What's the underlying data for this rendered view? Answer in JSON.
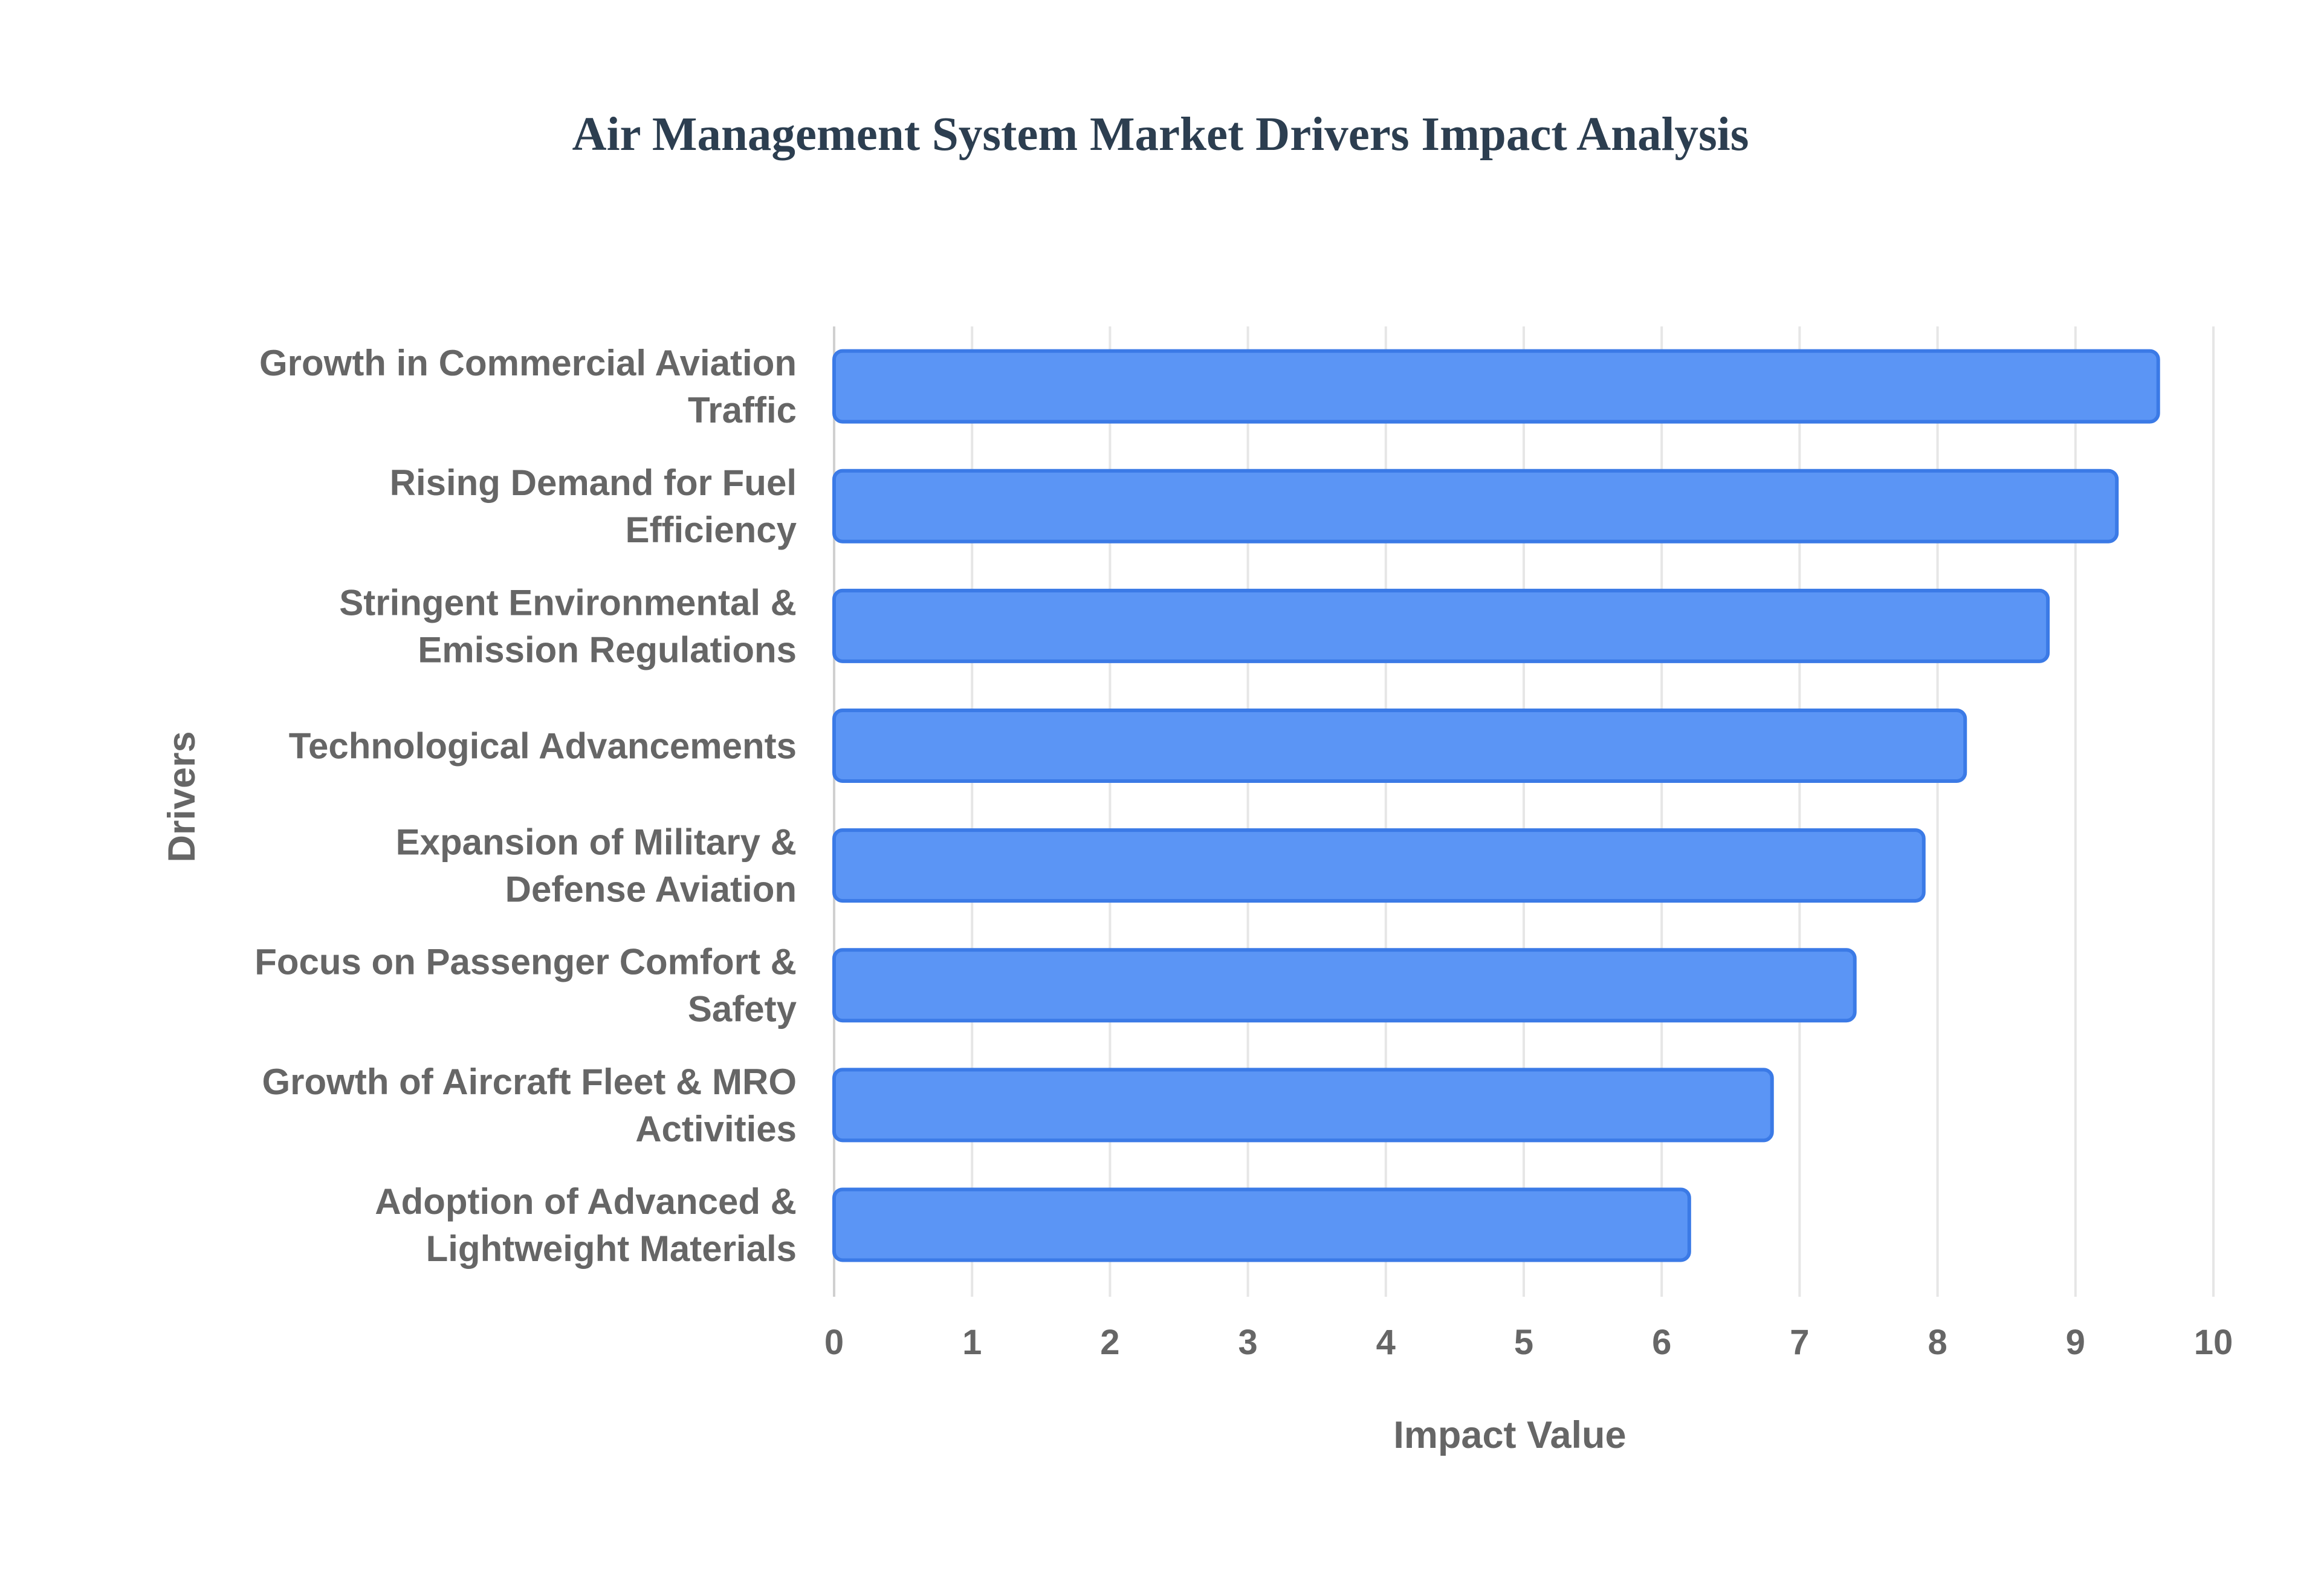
{
  "chart_data": {
    "type": "bar",
    "orientation": "horizontal",
    "title": "Air Management System Market Drivers Impact Analysis",
    "xlabel": "Impact Value",
    "ylabel": "Drivers",
    "xlim": [
      0,
      10
    ],
    "x_ticks": [
      "0",
      "1",
      "2",
      "3",
      "4",
      "5",
      "6",
      "7",
      "8",
      "9",
      "10"
    ],
    "grid": true,
    "categories": [
      [
        "Growth in Commercial Aviation",
        "Traffic"
      ],
      [
        "Rising Demand for Fuel",
        "Efficiency"
      ],
      [
        "Stringent Environmental &",
        "Emission Regulations"
      ],
      [
        "Technological Advancements"
      ],
      [
        "Expansion of Military &",
        "Defense Aviation"
      ],
      [
        "Focus on Passenger Comfort &",
        "Safety"
      ],
      [
        "Growth of Aircraft Fleet & MRO",
        "Activities"
      ],
      [
        "Adoption of Advanced &",
        "Lightweight Materials"
      ]
    ],
    "values": [
      9.6,
      9.3,
      8.8,
      8.2,
      7.9,
      7.4,
      6.8,
      6.2
    ],
    "colors": {
      "bar_fill": "#5b95f5",
      "bar_stroke": "#3b7ae6",
      "grid": "#e6e6e6",
      "axis": "#d0d0d0",
      "text": "#666666",
      "title": "#2c3e50"
    }
  }
}
